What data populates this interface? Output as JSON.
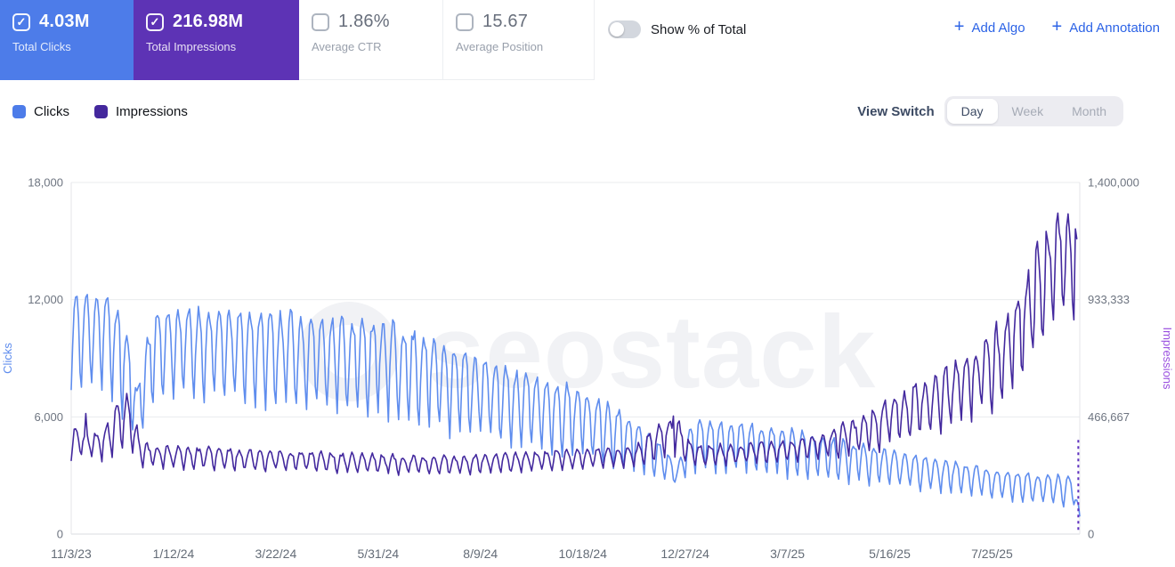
{
  "header": {
    "cards": [
      {
        "value": "4.03M",
        "label": "Total Clicks",
        "checked": true,
        "bg": "#4d7ce9"
      },
      {
        "value": "216.98M",
        "label": "Total Impressions",
        "checked": true,
        "bg": "#5d33b5"
      },
      {
        "value": "1.86%",
        "label": "Average CTR",
        "checked": false,
        "bg": "#ffffff"
      },
      {
        "value": "15.67",
        "label": "Average Position",
        "checked": false,
        "bg": "#ffffff"
      }
    ],
    "toggle": {
      "label": "Show % of Total",
      "on": false
    },
    "actions": [
      {
        "label": "Add Algo"
      },
      {
        "label": "Add Annotation"
      }
    ],
    "accent_blue": "#2c63e6"
  },
  "legend": {
    "items": [
      {
        "label": "Clicks",
        "color": "#4d7ce9"
      },
      {
        "label": "Impressions",
        "color": "#44289d"
      }
    ]
  },
  "view_switch": {
    "label": "View Switch",
    "options": [
      "Day",
      "Week",
      "Month"
    ],
    "selected": "Day"
  },
  "watermark": "seostack",
  "chart_data": {
    "type": "line",
    "x_axis": {
      "tick_labels": [
        "11/3/23",
        "1/12/24",
        "3/22/24",
        "5/31/24",
        "8/9/24",
        "10/18/24",
        "12/27/24",
        "3/7/25",
        "5/16/25",
        "7/25/25"
      ],
      "tick_interval_days": 70,
      "total_days": 690
    },
    "left_axis": {
      "label": "Clicks",
      "color": "#5f8dee",
      "max": 18000,
      "tick_values": [
        0,
        6000,
        12000,
        18000
      ],
      "ticks": [
        "0",
        "6,000",
        "12,000",
        "18,000"
      ]
    },
    "right_axis": {
      "label": "Impressions",
      "color": "#9b51e0",
      "max": 1400000,
      "tick_values": [
        0,
        466667,
        933333,
        1400000
      ],
      "ticks": [
        "0",
        "466,667",
        "933,333",
        "1,400,000"
      ]
    },
    "grid": "horizontal",
    "legend_position": "top-left",
    "series": [
      {
        "name": "Clicks",
        "axis": "left",
        "color": "#5f8dee",
        "seed": 11,
        "period_days": 7,
        "jitter": 0.09,
        "weekly_pattern": [
          0.04,
          0.5,
          0.88,
          1.0,
          0.96,
          0.78,
          0.28
        ],
        "envelope": [
          [
            0,
            7200,
            12000
          ],
          [
            21,
            7500,
            12300
          ],
          [
            35,
            6000,
            11200
          ],
          [
            45,
            4500,
            7600
          ],
          [
            56,
            6600,
            11200
          ],
          [
            70,
            7000,
            11400
          ],
          [
            105,
            6800,
            11300
          ],
          [
            140,
            6500,
            11200
          ],
          [
            175,
            6300,
            11000
          ],
          [
            210,
            6000,
            10800
          ],
          [
            240,
            5400,
            10200
          ],
          [
            265,
            5000,
            9400
          ],
          [
            280,
            4800,
            8900
          ],
          [
            310,
            4400,
            8100
          ],
          [
            350,
            3900,
            7300
          ],
          [
            375,
            3400,
            6300
          ],
          [
            400,
            2800,
            4900
          ],
          [
            415,
            2500,
            3400
          ],
          [
            425,
            3200,
            5900
          ],
          [
            455,
            3100,
            5700
          ],
          [
            490,
            2900,
            5300
          ],
          [
            525,
            2700,
            4800
          ],
          [
            560,
            2400,
            4300
          ],
          [
            595,
            2100,
            3800
          ],
          [
            630,
            1800,
            3300
          ],
          [
            660,
            1500,
            3000
          ],
          [
            686,
            1400,
            2900
          ],
          [
            690,
            300,
            1000
          ]
        ],
        "spikes": []
      },
      {
        "name": "Impressions",
        "axis": "right",
        "color": "#43299e",
        "seed": 23,
        "period_days": 7,
        "jitter": 0.12,
        "weekly_pattern": [
          0.12,
          0.55,
          0.9,
          1.0,
          0.92,
          0.72,
          0.32
        ],
        "end_day": 688,
        "envelope": [
          [
            0,
            290000,
            430000
          ],
          [
            20,
            280000,
            400000
          ],
          [
            38,
            300000,
            560000
          ],
          [
            48,
            260000,
            360000
          ],
          [
            70,
            255000,
            345000
          ],
          [
            140,
            245000,
            330000
          ],
          [
            210,
            235000,
            315000
          ],
          [
            245,
            230000,
            305000
          ],
          [
            280,
            235000,
            315000
          ],
          [
            315,
            245000,
            325000
          ],
          [
            350,
            255000,
            335000
          ],
          [
            385,
            260000,
            345000
          ],
          [
            412,
            290000,
            470000
          ],
          [
            425,
            265000,
            350000
          ],
          [
            455,
            270000,
            355000
          ],
          [
            490,
            280000,
            370000
          ],
          [
            515,
            295000,
            400000
          ],
          [
            540,
            310000,
            460000
          ],
          [
            560,
            330000,
            540000
          ],
          [
            580,
            360000,
            600000
          ],
          [
            600,
            400000,
            660000
          ],
          [
            618,
            440000,
            720000
          ],
          [
            632,
            480000,
            800000
          ],
          [
            648,
            560000,
            950000
          ],
          [
            660,
            650000,
            1120000
          ],
          [
            670,
            750000,
            1230000
          ],
          [
            680,
            820000,
            1250000
          ],
          [
            688,
            860000,
            1220000
          ]
        ],
        "spikes": [
          [
            10,
            480000
          ],
          [
            38,
            560000
          ],
          [
            412,
            470000
          ],
          [
            660,
            1130000
          ],
          [
            687,
            1215000
          ]
        ]
      }
    ],
    "end_marker": {
      "style": "dashed-vertical",
      "day": 689,
      "from_value": 375000,
      "to_value": 9000,
      "color": "#5f30c0"
    }
  }
}
